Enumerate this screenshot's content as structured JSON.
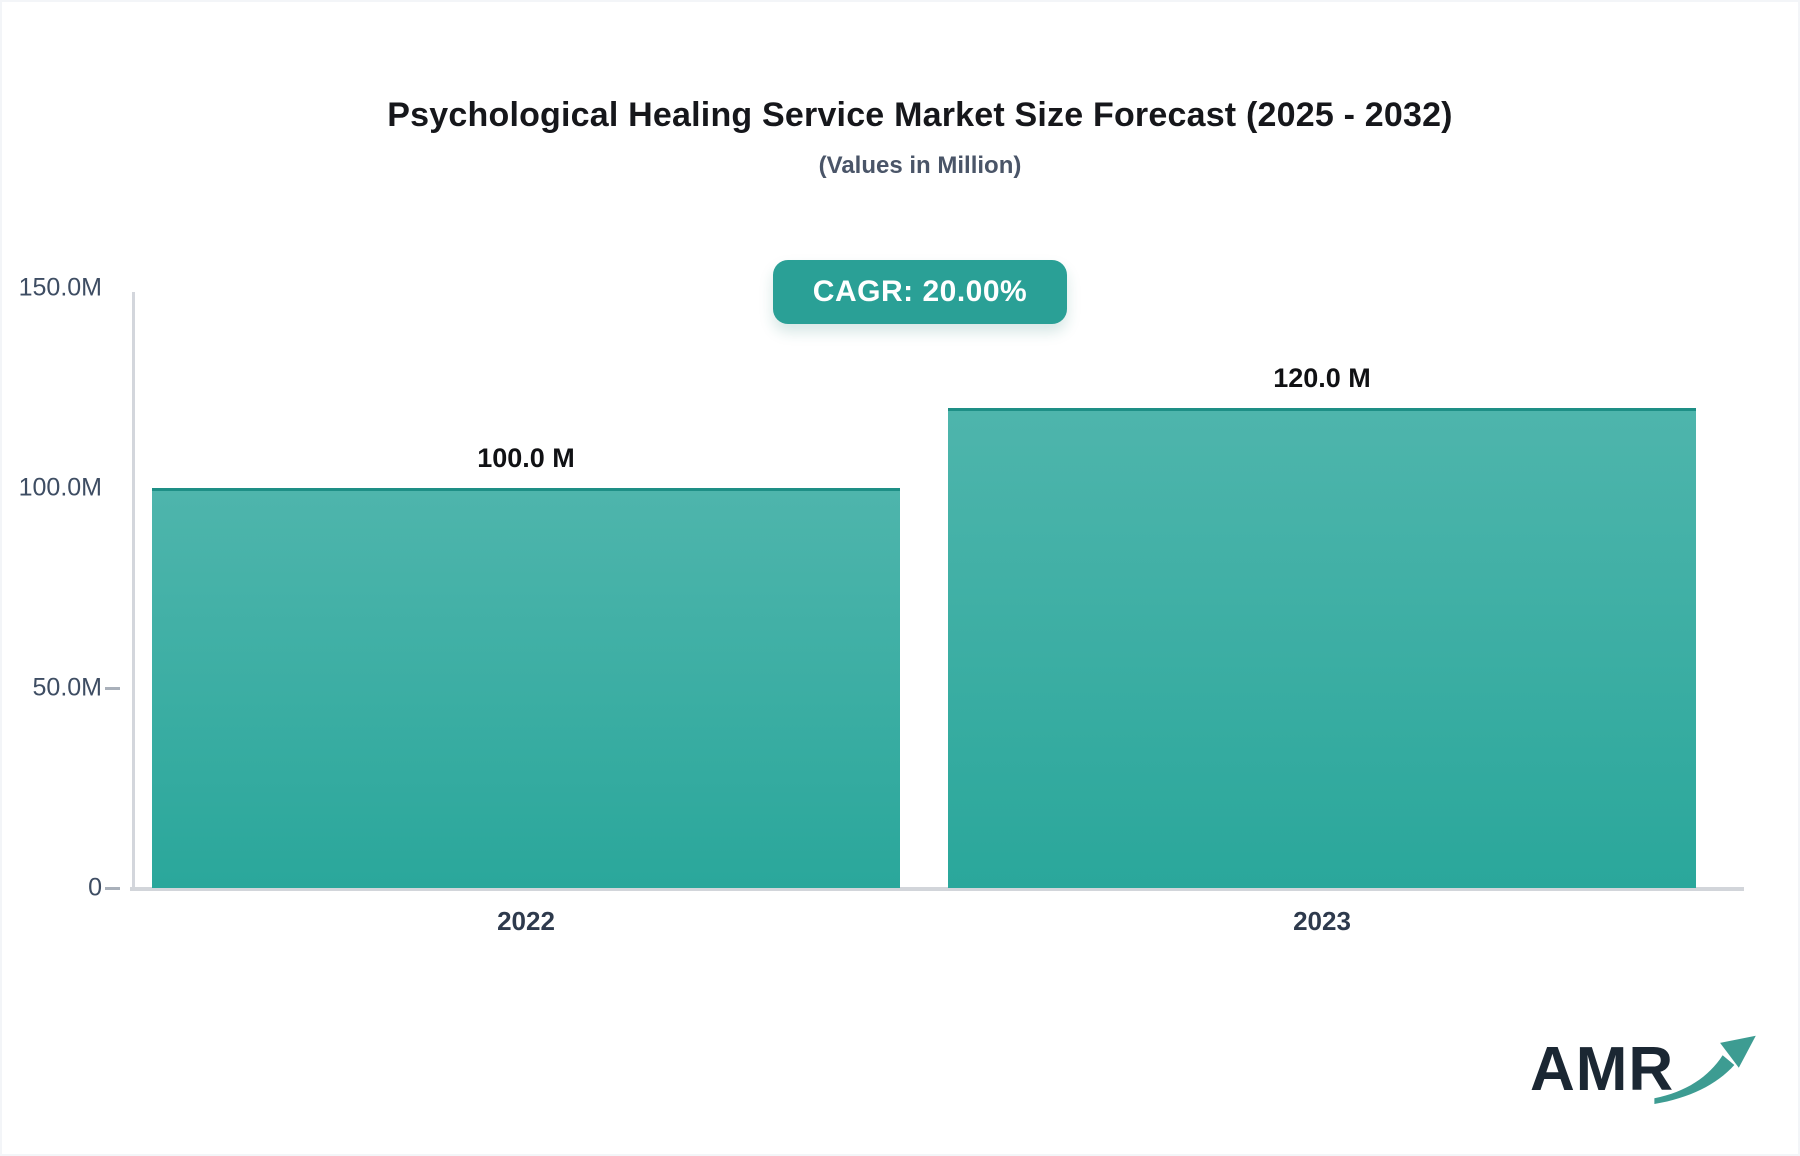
{
  "header": {
    "title": "Psychological Healing Service Market Size Forecast (2025 - 2032)",
    "subtitle": "(Values in Million)",
    "cagr_badge": "CAGR: 20.00%"
  },
  "logo": {
    "text": "AMR",
    "icon": "trend-up-arrow-icon"
  },
  "colors": {
    "accent_teal": "#2aa096",
    "badge_bg": "#2aa096",
    "badge_text": "#ffffff",
    "bar_gradient_top": "#4eb5ac",
    "bar_gradient_bottom": "#2aa79b",
    "bar_top_border": "#1e8f86",
    "axis_line": "#d3d6dc",
    "y_tick_text": "#3e4d63",
    "x_tick_text": "#2e3a4d",
    "title_text": "#16171b",
    "subtitle_text": "#4a5568",
    "logo_text": "#1b2733",
    "logo_arrow": "#3d9c92"
  },
  "chart_data": {
    "type": "bar",
    "title": "Psychological Healing Service Market Size Forecast (2025 - 2032)",
    "subtitle": "(Values in Million)",
    "unit": "Million",
    "cagr_percent": 20.0,
    "categories": [
      "2022",
      "2023"
    ],
    "values": [
      100.0,
      120.0
    ],
    "bar_labels": [
      "100.0 M",
      "120.0 M"
    ],
    "ylim": [
      0,
      150
    ],
    "yticks": [
      {
        "label": "150.0M",
        "value": 150,
        "dash": false
      },
      {
        "label": "100.0M",
        "value": 100,
        "dash": false
      },
      {
        "label": "50.0M",
        "value": 50,
        "dash": true
      },
      {
        "label": "0",
        "value": 0,
        "dash": true
      }
    ],
    "grid": false,
    "legend": false
  }
}
